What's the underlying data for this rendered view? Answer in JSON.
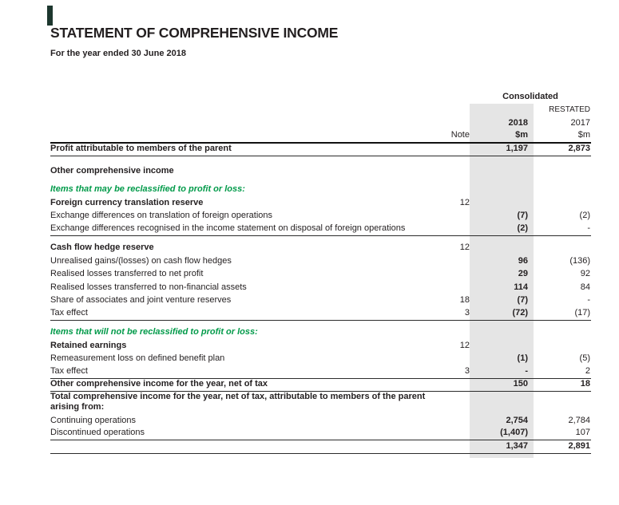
{
  "colors": {
    "accent_green": "#009a49",
    "shade_gray": "#e5e5e5",
    "rule_dark": "#2b2b2b",
    "bar_dark": "#1d372e"
  },
  "page": {
    "title": "STATEMENT OF COMPREHENSIVE INCOME",
    "subtitle": "For the year ended 30 June 2018"
  },
  "table": {
    "group_header": "Consolidated",
    "restated_label": "RESTATED",
    "columns": {
      "note": "Note",
      "year_2018": "2018",
      "year_2017": "2017",
      "unit_2018": "$m",
      "unit_2017": "$m"
    },
    "rows": [
      {
        "label": "Profit attributable to members of the parent",
        "note": "",
        "y2018": "1,197",
        "y2017": "2,873"
      },
      {
        "label": "Other comprehensive income",
        "note": "",
        "y2018": "",
        "y2017": ""
      },
      {
        "label": "Items that may be reclassified to profit or loss:",
        "note": "",
        "y2018": "",
        "y2017": ""
      },
      {
        "label": "Foreign currency translation reserve",
        "note": "12",
        "y2018": "",
        "y2017": ""
      },
      {
        "label": "Exchange differences on translation of foreign operations",
        "note": "",
        "y2018": "(7)",
        "y2017": "(2)"
      },
      {
        "label": "Exchange differences recognised in the income statement on disposal of foreign operations",
        "note": "",
        "y2018": "(2)",
        "y2017": "-"
      },
      {
        "label": "Cash flow hedge reserve",
        "note": "12",
        "y2018": "",
        "y2017": ""
      },
      {
        "label": "Unrealised gains/(losses) on cash flow hedges",
        "note": "",
        "y2018": "96",
        "y2017": "(136)"
      },
      {
        "label": "Realised losses transferred to net profit",
        "note": "",
        "y2018": "29",
        "y2017": "92"
      },
      {
        "label": "Realised losses transferred to non-financial assets",
        "note": "",
        "y2018": "114",
        "y2017": "84"
      },
      {
        "label": "Share of associates and joint venture reserves",
        "note": "18",
        "y2018": "(7)",
        "y2017": "-"
      },
      {
        "label": "Tax effect",
        "note": "3",
        "y2018": "(72)",
        "y2017": "(17)"
      },
      {
        "label": "Items that will not be reclassified to profit or loss:",
        "note": "",
        "y2018": "",
        "y2017": ""
      },
      {
        "label": "Retained earnings",
        "note": "12",
        "y2018": "",
        "y2017": ""
      },
      {
        "label": "Remeasurement loss on defined benefit plan",
        "note": "",
        "y2018": "(1)",
        "y2017": "(5)"
      },
      {
        "label": "Tax effect",
        "note": "3",
        "y2018": "-",
        "y2017": "2"
      },
      {
        "label": "Other comprehensive income for the year, net of tax",
        "note": "",
        "y2018": "150",
        "y2017": "18"
      },
      {
        "label": "Total comprehensive income for the year, net of tax, attributable to members of the parent arising from:",
        "note": "",
        "y2018": "",
        "y2017": ""
      },
      {
        "label": "Continuing operations",
        "note": "",
        "y2018": "2,754",
        "y2017": "2,784"
      },
      {
        "label": "Discontinued operations",
        "note": "",
        "y2018": "(1,407)",
        "y2017": "107"
      },
      {
        "label": "",
        "note": "",
        "y2018": "1,347",
        "y2017": "2,891"
      }
    ]
  }
}
